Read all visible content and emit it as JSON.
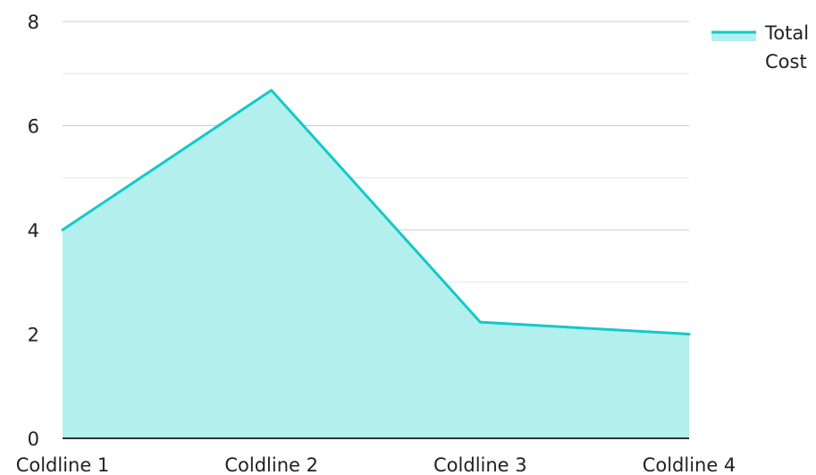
{
  "chart_data": {
    "type": "area",
    "categories": [
      "Coldline 1",
      "Coldline 2",
      "Coldline 3",
      "Coldline 4"
    ],
    "series": [
      {
        "name": "Total Cost",
        "values": [
          4.0,
          6.68,
          2.23,
          2.0
        ],
        "line_color": "#13c9c9",
        "fill_color": "#b2efed"
      }
    ],
    "ylim": [
      0,
      8
    ],
    "yticks": [
      "0",
      "2",
      "4",
      "6",
      "8"
    ],
    "legend": {
      "position": "top-right",
      "lines": [
        "Total",
        "Cost"
      ]
    },
    "grid": true
  }
}
